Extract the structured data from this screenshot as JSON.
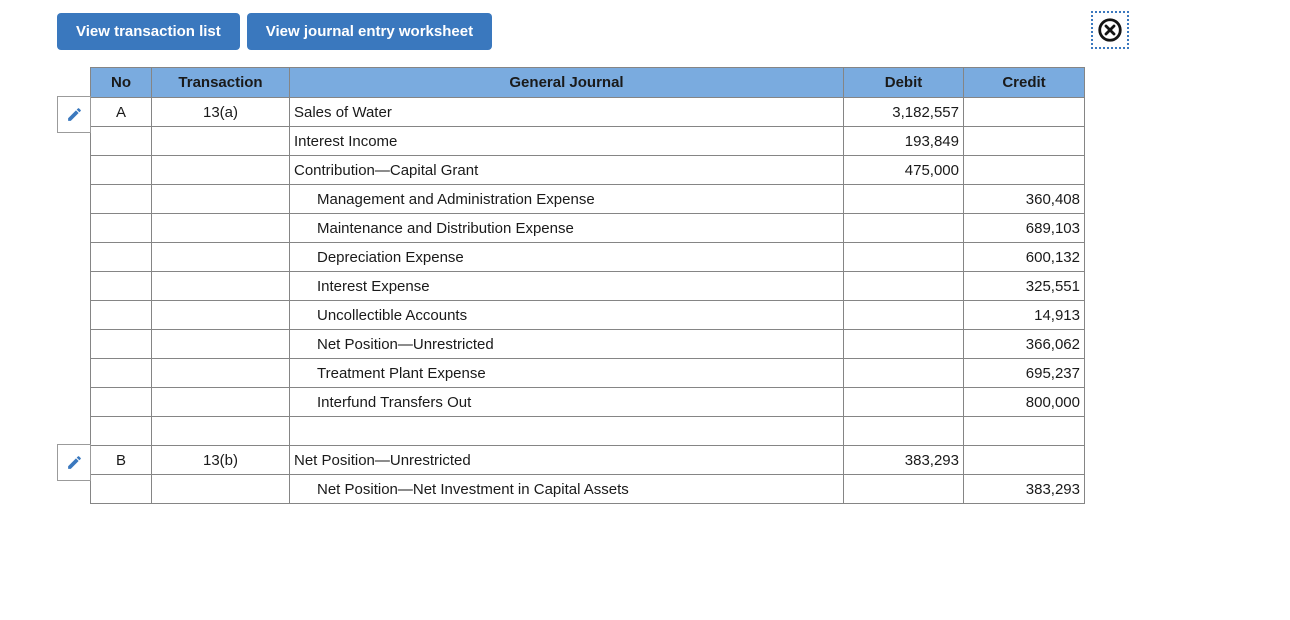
{
  "toolbar": {
    "view_transaction_list": "View transaction list",
    "view_journal_entry_worksheet": "View journal entry worksheet"
  },
  "icons": {
    "close": "circle-x-icon",
    "edit": "pencil-icon"
  },
  "colors": {
    "button_blue": "#3a78be",
    "header_blue": "#7aabdf",
    "table_border_gray": "#858585",
    "pencil_blue": "#3a78be",
    "focus_dotted_blue": "#3a78be"
  },
  "table": {
    "headers": [
      "No",
      "Transaction",
      "General Journal",
      "Debit",
      "Credit"
    ],
    "rows": [
      {
        "no": "A",
        "transaction": "13(a)",
        "account": "Sales of Water",
        "indent": false,
        "debit": "3,182,557",
        "credit": "",
        "edit": true
      },
      {
        "no": "",
        "transaction": "",
        "account": "Interest Income",
        "indent": false,
        "debit": "193,849",
        "credit": ""
      },
      {
        "no": "",
        "transaction": "",
        "account": "Contribution—Capital Grant",
        "indent": false,
        "debit": "475,000",
        "credit": ""
      },
      {
        "no": "",
        "transaction": "",
        "account": "Management and Administration Expense",
        "indent": true,
        "debit": "",
        "credit": "360,408"
      },
      {
        "no": "",
        "transaction": "",
        "account": "Maintenance and Distribution Expense",
        "indent": true,
        "debit": "",
        "credit": "689,103"
      },
      {
        "no": "",
        "transaction": "",
        "account": "Depreciation Expense",
        "indent": true,
        "debit": "",
        "credit": "600,132"
      },
      {
        "no": "",
        "transaction": "",
        "account": "Interest Expense",
        "indent": true,
        "debit": "",
        "credit": "325,551"
      },
      {
        "no": "",
        "transaction": "",
        "account": "Uncollectible Accounts",
        "indent": true,
        "debit": "",
        "credit": "14,913"
      },
      {
        "no": "",
        "transaction": "",
        "account": "Net Position—Unrestricted",
        "indent": true,
        "debit": "",
        "credit": "366,062"
      },
      {
        "no": "",
        "transaction": "",
        "account": "Treatment Plant Expense",
        "indent": true,
        "debit": "",
        "credit": "695,237"
      },
      {
        "no": "",
        "transaction": "",
        "account": "Interfund Transfers Out",
        "indent": true,
        "debit": "",
        "credit": "800,000"
      },
      {
        "no": "",
        "transaction": "",
        "account": "",
        "indent": false,
        "debit": "",
        "credit": "",
        "spacer": true
      },
      {
        "no": "B",
        "transaction": "13(b)",
        "account": "Net Position—Unrestricted",
        "indent": false,
        "debit": "383,293",
        "credit": "",
        "edit": true
      },
      {
        "no": "",
        "transaction": "",
        "account": "Net Position—Net Investment in Capital Assets",
        "indent": true,
        "debit": "",
        "credit": "383,293"
      }
    ]
  }
}
